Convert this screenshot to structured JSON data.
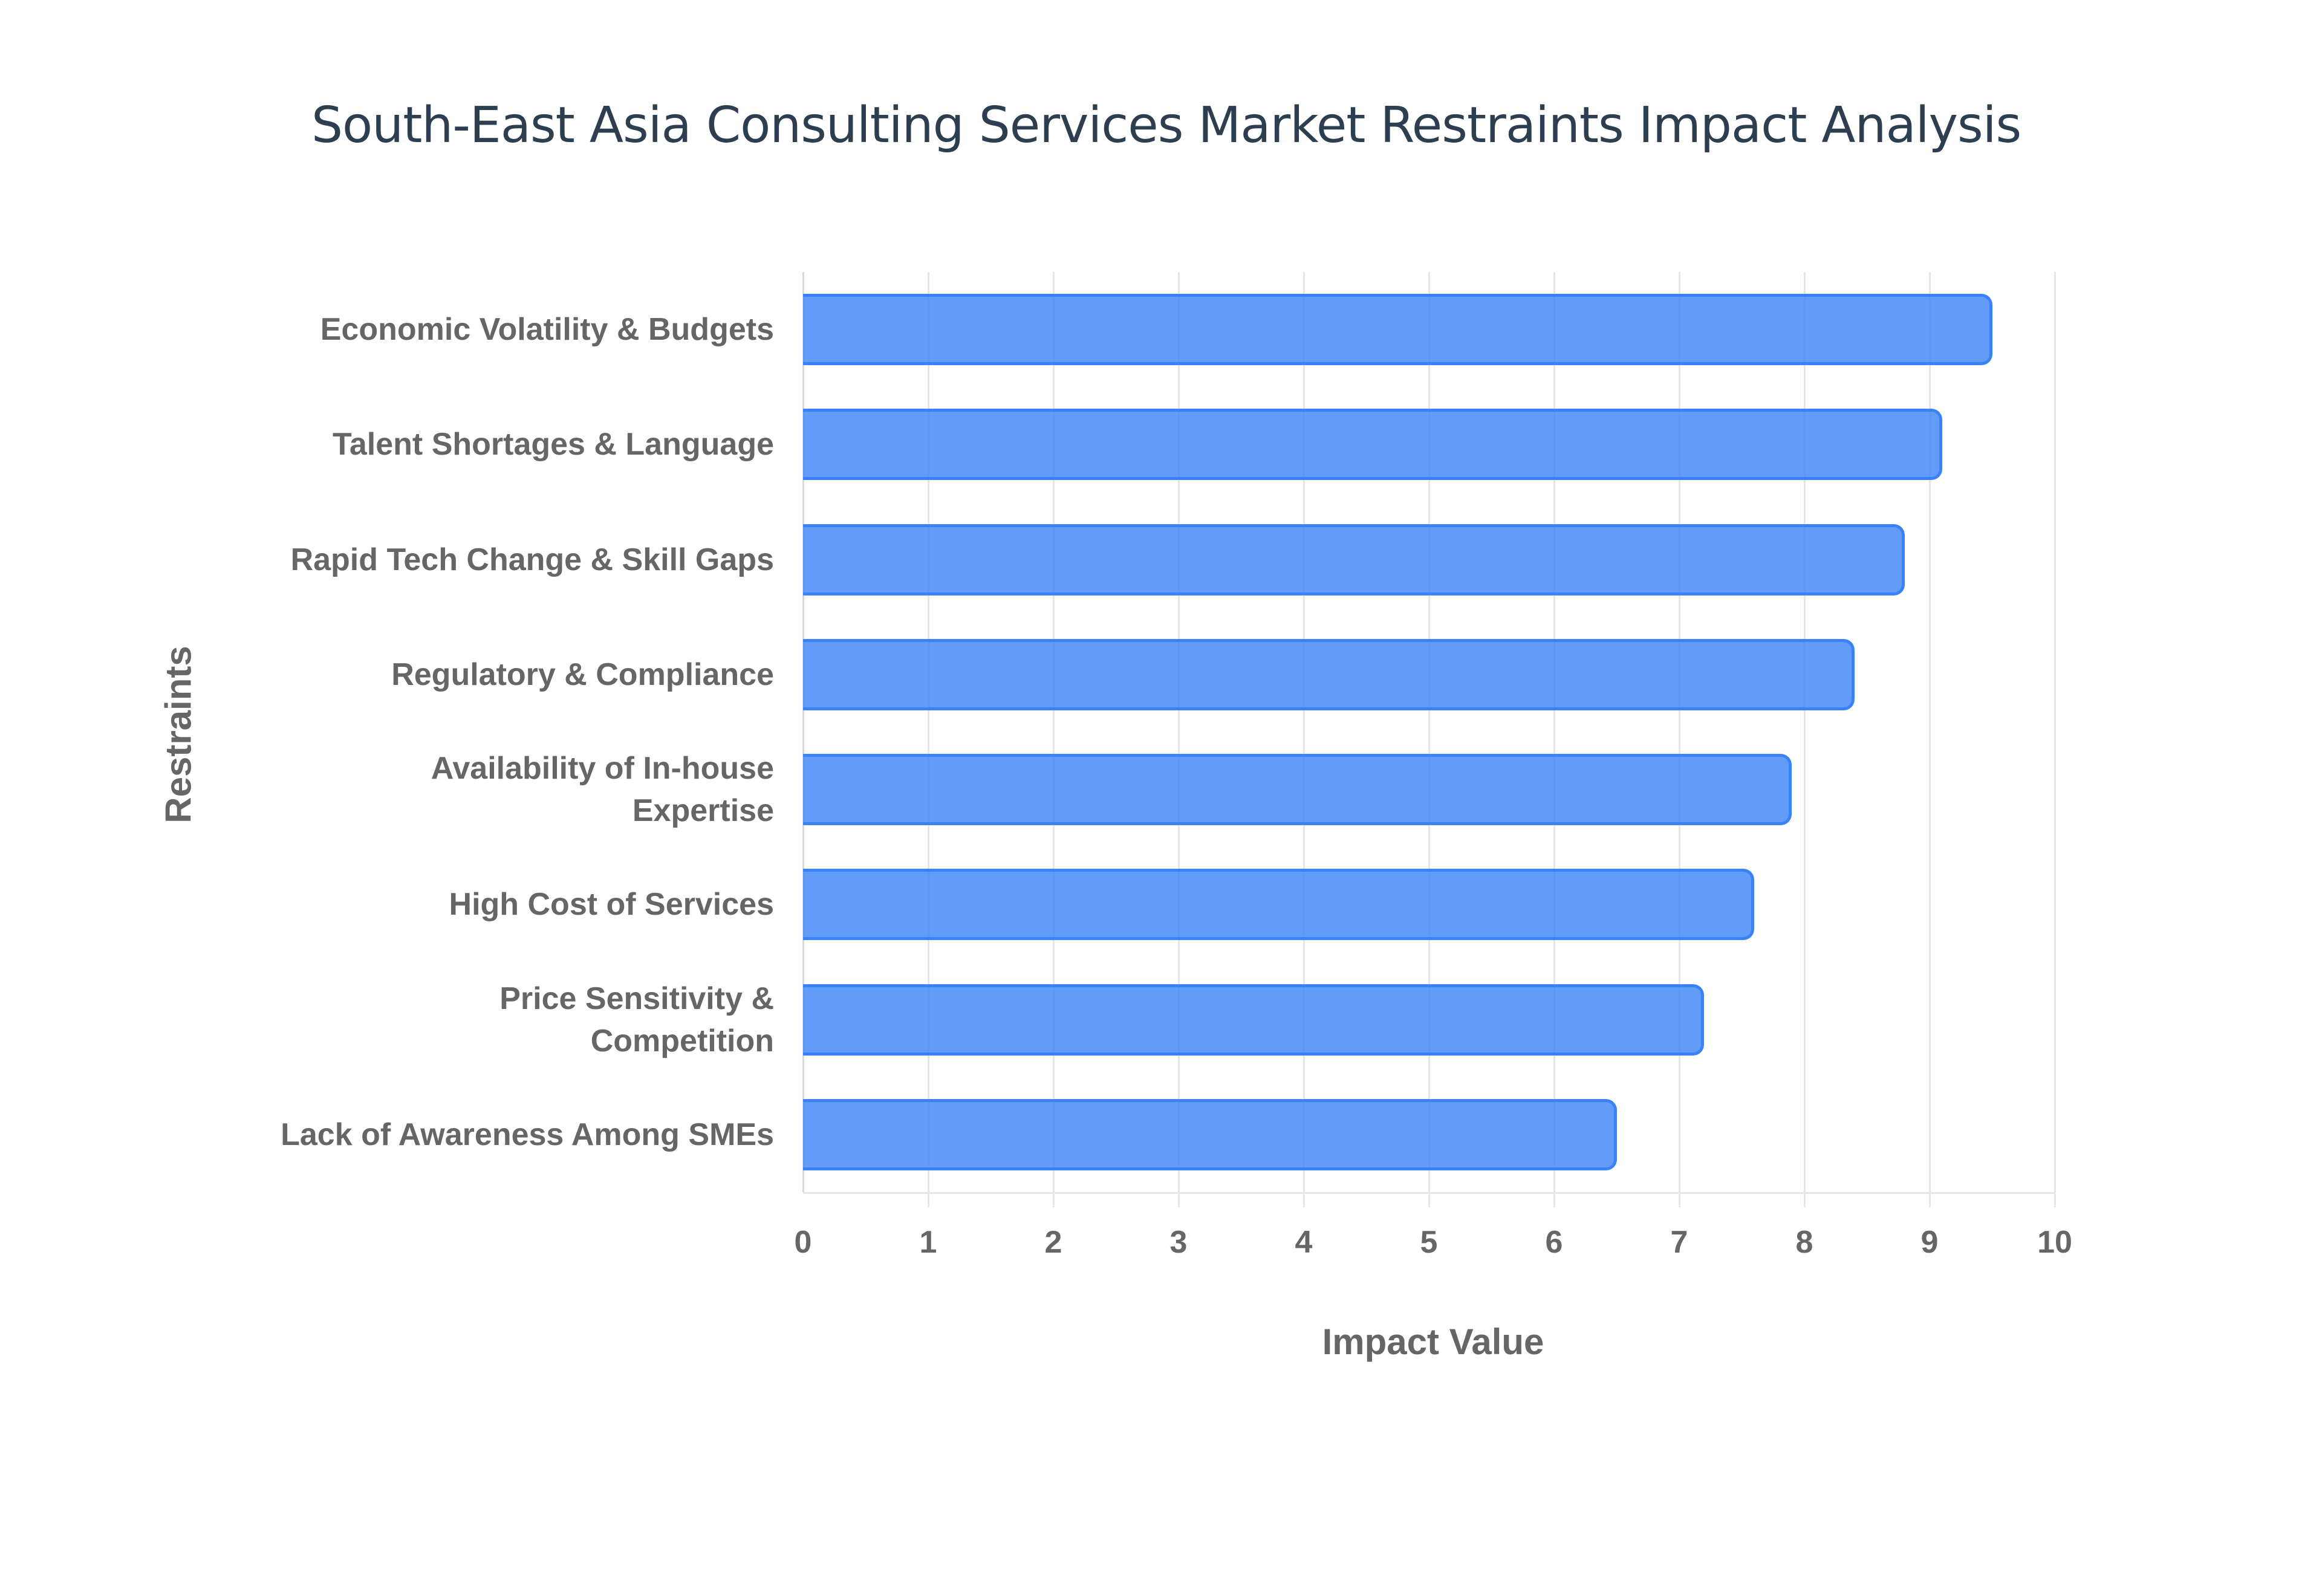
{
  "chart_data": {
    "type": "bar",
    "orientation": "horizontal",
    "title": "South-East Asia Consulting Services Market Restraints Impact Analysis",
    "xlabel": "Impact Value",
    "ylabel": "Restraints",
    "xlim": [
      0,
      10
    ],
    "xticks": [
      "0",
      "1",
      "2",
      "3",
      "4",
      "5",
      "6",
      "7",
      "8",
      "9",
      "10"
    ],
    "grid": true,
    "legend": null,
    "categories": [
      [
        "Economic Volatility & Budgets"
      ],
      [
        "Talent Shortages & Language"
      ],
      [
        "Rapid Tech Change & Skill Gaps"
      ],
      [
        "Regulatory & Compliance"
      ],
      [
        "Availability of In-house",
        "Expertise"
      ],
      [
        "High Cost of Services"
      ],
      [
        "Price Sensitivity &",
        "Competition"
      ],
      [
        "Lack of Awareness Among SMEs"
      ]
    ],
    "category_names": [
      "Economic Volatility & Budgets",
      "Talent Shortages & Language",
      "Rapid Tech Change & Skill Gaps",
      "Regulatory & Compliance",
      "Availability of In-house Expertise",
      "High Cost of Services",
      "Price Sensitivity & Competition",
      "Lack of Awareness Among SMEs"
    ],
    "values": [
      9.5,
      9.1,
      8.8,
      8.4,
      7.9,
      7.6,
      7.2,
      6.5
    ],
    "colors": {
      "bar_fill": "#6199f5",
      "bar_border": "#3b82f6",
      "grid": "#e6e6e6",
      "text": "#666666",
      "title": "#2c3e50"
    }
  }
}
